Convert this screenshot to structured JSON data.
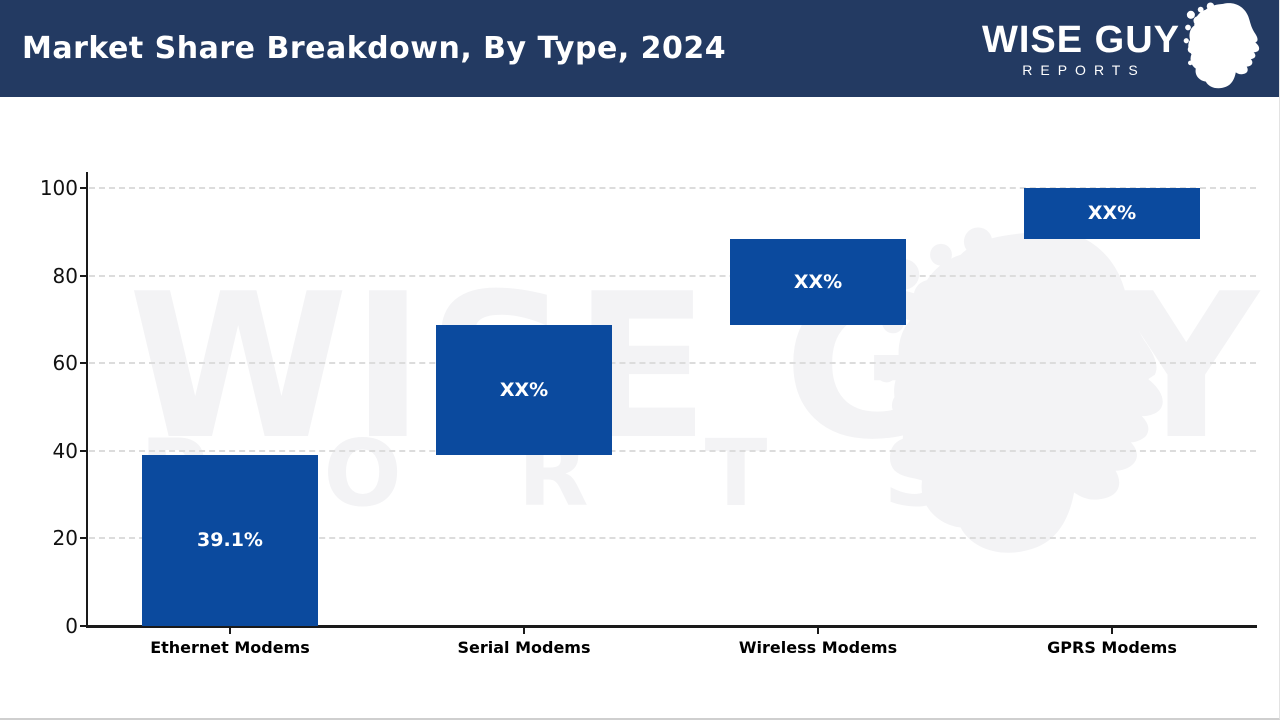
{
  "header": {
    "title": "Market Share Breakdown, By Type, 2024",
    "logo": {
      "name": "WISE GUY",
      "tagline": "REPORTS"
    }
  },
  "watermark": {
    "line1": "WISE GUY",
    "line2": "P O R T S"
  },
  "colors": {
    "header_bg": "#233a62",
    "bar": "#0b4a9e",
    "grid": "#dcdcdc",
    "axis": "#1a1a1a",
    "watermark": "#f3f3f5",
    "value_label": "#ffffff"
  },
  "chart_data": {
    "type": "bar",
    "subtype": "waterfall",
    "title": "Market Share Breakdown, By Type, 2024",
    "categories": [
      "Ethernet Modems",
      "Serial Modems",
      "Wireless Modems",
      "GPRS Modems"
    ],
    "segments": [
      {
        "category": "Ethernet Modems",
        "start": 0,
        "end": 39.1,
        "label": "39.1%"
      },
      {
        "category": "Serial Modems",
        "start": 39.1,
        "end": 68.8,
        "label": "XX%"
      },
      {
        "category": "Wireless Modems",
        "start": 68.8,
        "end": 88.4,
        "label": "XX%"
      },
      {
        "category": "GPRS Modems",
        "start": 88.4,
        "end": 100,
        "label": "XX%"
      }
    ],
    "xlabel": "",
    "ylabel": "",
    "ylim": [
      0,
      105
    ],
    "yticks": [
      0,
      20,
      40,
      60,
      80,
      100
    ],
    "grid": "horizontal-dashed",
    "legend": "none",
    "bar_color": "#0b4a9e"
  }
}
